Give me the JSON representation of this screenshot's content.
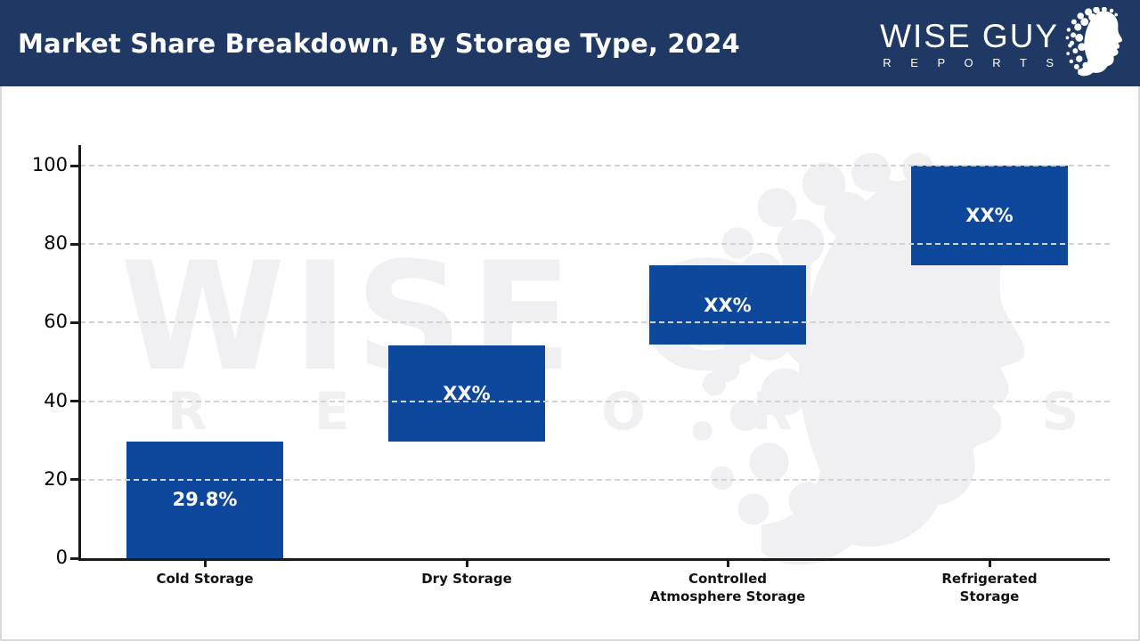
{
  "header": {
    "title": "Market Share Breakdown, By Storage Type, 2024",
    "bg_color": "#1f3864",
    "logo": {
      "line1": "WISE GUY",
      "line2": "R E P O R T S"
    }
  },
  "watermark": {
    "line1": "WISE GUY",
    "line2": "R E P O R T S",
    "color": "#f0f0f3"
  },
  "chart_data": {
    "type": "bar",
    "subtype": "waterfall",
    "title": "Market Share Breakdown, By Storage Type, 2024",
    "xlabel": "",
    "ylabel": "",
    "ylim": [
      0,
      105.5
    ],
    "yticks": [
      0,
      20,
      40,
      60,
      80,
      100
    ],
    "grid": "horizontal-dashed",
    "legend": "none",
    "bar_color": "#0d489c",
    "categories": [
      "Cold Storage",
      "Dry Storage",
      "Controlled Atmosphere Storage",
      "Refrigerated Storage"
    ],
    "category_lines": [
      [
        "Cold Storage"
      ],
      [
        "Dry Storage"
      ],
      [
        "Controlled",
        "Atmosphere Storage"
      ],
      [
        "Refrigerated",
        "Storage"
      ]
    ],
    "segments": [
      {
        "category": "Cold Storage",
        "start": 0,
        "end": 29.8,
        "label": "29.8%"
      },
      {
        "category": "Dry Storage",
        "start": 29.8,
        "end": 54.2,
        "label": "XX%"
      },
      {
        "category": "Controlled Atmosphere Storage",
        "start": 54.4,
        "end": 74.6,
        "label": "XX%"
      },
      {
        "category": "Refrigerated Storage",
        "start": 74.6,
        "end": 100,
        "label": "XX%"
      }
    ]
  }
}
